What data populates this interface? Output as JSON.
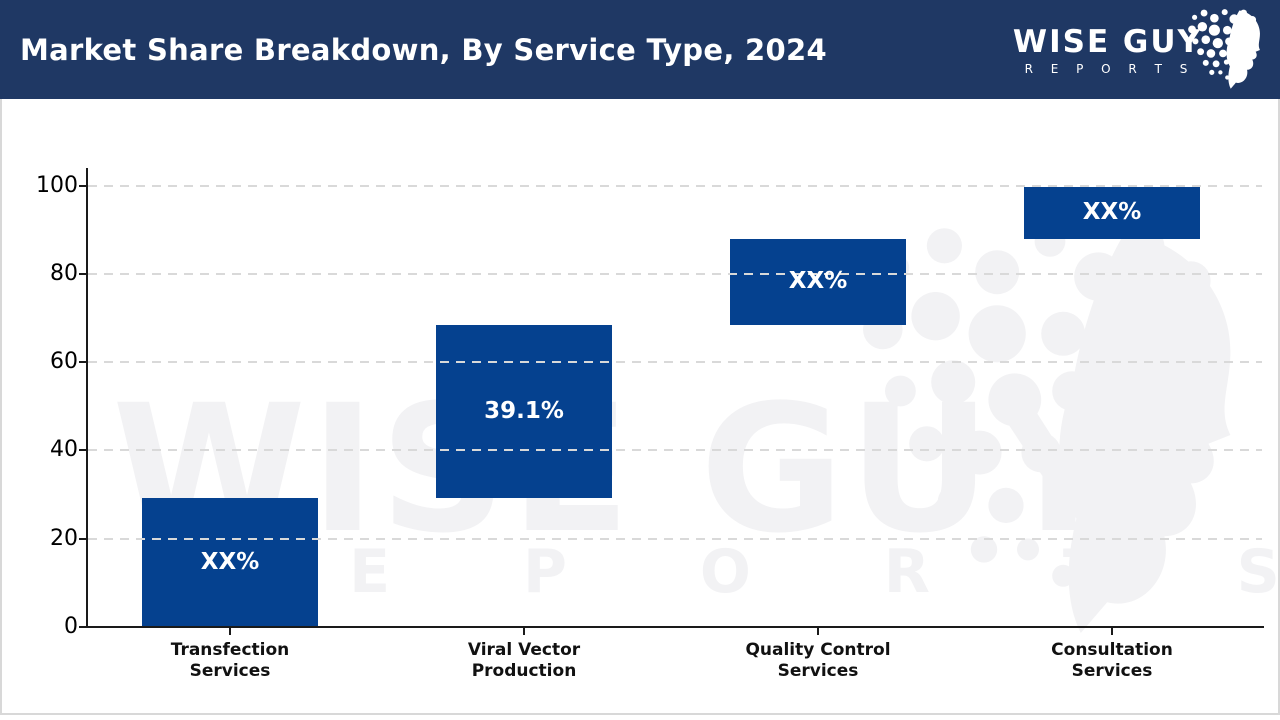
{
  "header": {
    "title": "Market Share Breakdown, By Service Type, 2024",
    "logo": {
      "line1": "WISE GUY",
      "line2": "R E P O R T S"
    }
  },
  "watermark": {
    "line1": "WISE GUY",
    "line2": "R E P O R T S"
  },
  "chart_data": {
    "type": "bar",
    "subtype": "floating-waterfall",
    "title": "Market Share Breakdown, By Service Type, 2024",
    "categories": [
      "Transfection Services",
      "Viral Vector Production",
      "Quality Control Services",
      "Consultation Services"
    ],
    "category_lines": [
      [
        "Transfection",
        "Services"
      ],
      [
        "Viral Vector",
        "Production"
      ],
      [
        "Quality Control",
        "Services"
      ],
      [
        "Consultation",
        "Services"
      ]
    ],
    "segments": [
      {
        "category": "Transfection Services",
        "start": 0,
        "end": 29.2,
        "value": 29.2,
        "label": "XX%"
      },
      {
        "category": "Viral Vector Production",
        "start": 29.2,
        "end": 68.3,
        "value": 39.1,
        "label": "39.1%"
      },
      {
        "category": "Quality Control Services",
        "start": 68.3,
        "end": 87.9,
        "value": 19.6,
        "label": "XX%"
      },
      {
        "category": "Consultation Services",
        "start": 87.9,
        "end": 99.6,
        "value": 11.7,
        "label": "XX%"
      }
    ],
    "yticks": [
      0,
      20,
      40,
      60,
      80,
      100
    ],
    "ylim": [
      0,
      104
    ],
    "xlabel": "",
    "ylabel": "",
    "grid": "horizontal-dashed",
    "legend": "none"
  },
  "colors": {
    "header_bg": "#1f3864",
    "bar": "#05418f",
    "bar_label": "#ffffff",
    "axis": "#1a1a1a",
    "gridline": "#d9d9d9",
    "watermark": "#f2f2f4",
    "frame_border": "#d8d8d8"
  }
}
